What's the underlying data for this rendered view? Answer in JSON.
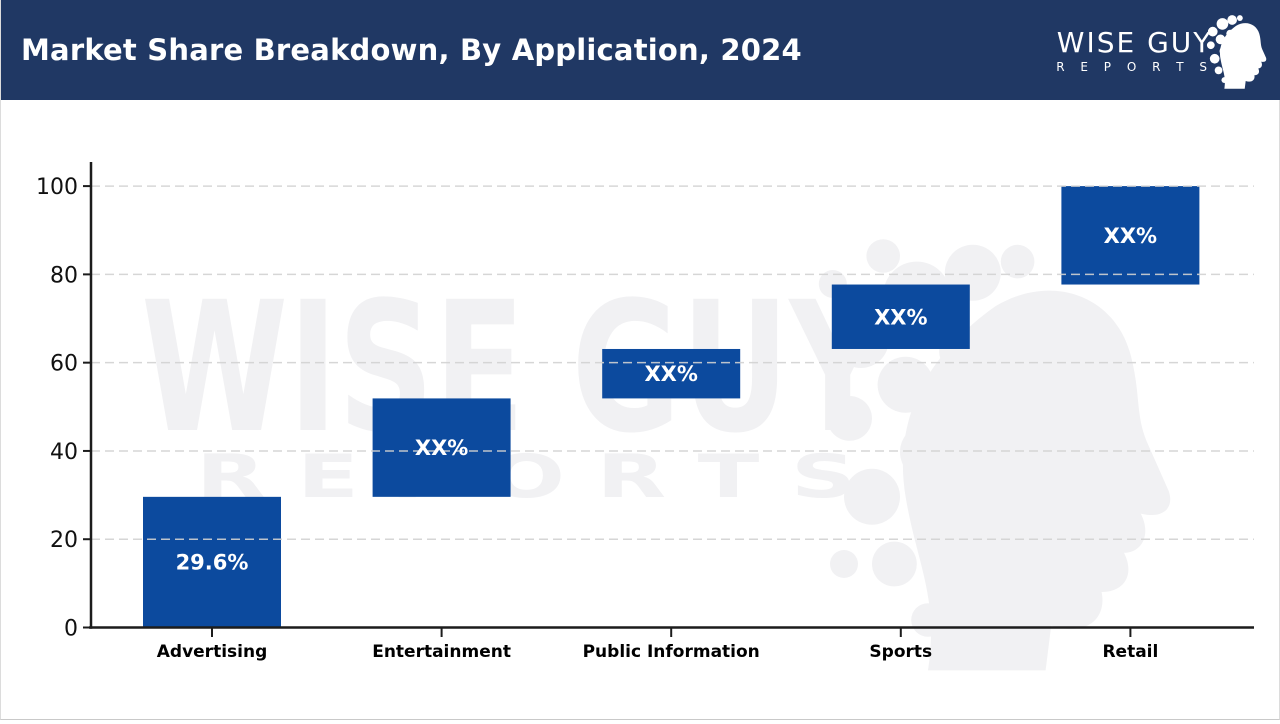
{
  "header": {
    "title": "Market Share Breakdown, By Application, 2024",
    "logo": {
      "name": "WISE GUY",
      "tagline": "R E P O R T S"
    }
  },
  "watermark": {
    "line1": "WISE GUY",
    "line2": "R E P O R T S"
  },
  "chart_data": {
    "type": "bar",
    "subtype": "waterfall",
    "title": "Market Share Breakdown, By Application, 2024",
    "categories": [
      "Advertising",
      "Entertainment",
      "Public Information",
      "Sports",
      "Retail"
    ],
    "segments": [
      {
        "category": "Advertising",
        "start": 0,
        "end": 29.6,
        "value": 29.6,
        "label": "29.6%"
      },
      {
        "category": "Entertainment",
        "start": 29.6,
        "end": 51.9,
        "value": 22.3,
        "label": "XX%"
      },
      {
        "category": "Public Information",
        "start": 51.9,
        "end": 63.1,
        "value": 11.2,
        "label": "XX%"
      },
      {
        "category": "Sports",
        "start": 63.1,
        "end": 77.7,
        "value": 14.6,
        "label": "XX%"
      },
      {
        "category": "Retail",
        "start": 77.7,
        "end": 100.0,
        "value": 22.3,
        "label": "XX%"
      }
    ],
    "yticks": [
      0,
      20,
      40,
      60,
      80,
      100
    ],
    "ylim": [
      0,
      100
    ],
    "xlabel": "",
    "ylabel": "",
    "grid": "horizontal-dashed",
    "legend": "none",
    "bar_color": "#0c4a9e",
    "bar_label_color": "#ffffff"
  },
  "colors": {
    "header_bg": "#203864",
    "bar": "#0c4a9e",
    "axis": "#1c1c1c",
    "gridline": "#d2d2d2",
    "watermark": "#f1f1f3",
    "tick_label": "#111111"
  }
}
